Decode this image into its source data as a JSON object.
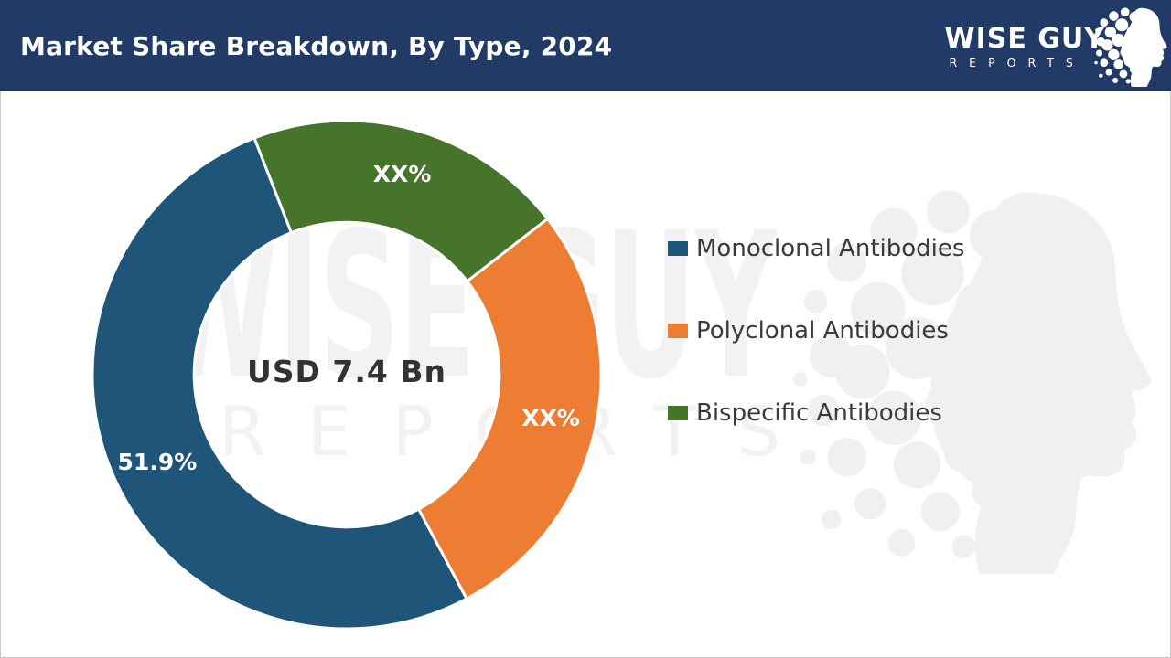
{
  "header": {
    "title": "Market Share Breakdown, By Type, 2024",
    "logo": {
      "name": "WISE GUY",
      "tagline": "REPORTS"
    }
  },
  "watermark": {
    "big_text": "WISE GUY",
    "reports_text": "REPORTS"
  },
  "chart_data": {
    "type": "pie",
    "subtype": "donut",
    "title": "Market Share Breakdown, By Type, 2024",
    "center_label": "USD 7.4 Bn",
    "start_angle_deg": 111.3,
    "counterclockwise": true,
    "inner_radius_ratio": 0.6,
    "legend_position": "right",
    "categories": [
      "Monoclonal Antibodies",
      "Polyclonal Antibodies",
      "Bispecific Antibodies"
    ],
    "series": [
      {
        "name": "Monoclonal Antibodies",
        "value": 51.9,
        "label": "51.9%",
        "color": "#1F5578"
      },
      {
        "name": "Polyclonal Antibodies",
        "value": 27.7,
        "label": "XX%",
        "color": "#EC7D33"
      },
      {
        "name": "Bispecific Antibodies",
        "value": 20.4,
        "label": "XX%",
        "color": "#45742A"
      }
    ]
  },
  "colors": {
    "header_bar": "#213A66",
    "canvas_border": "#CBCBCB",
    "center_text": "#333333",
    "legend_text": "#3A3A3A",
    "watermark": "#F2F2F4"
  }
}
